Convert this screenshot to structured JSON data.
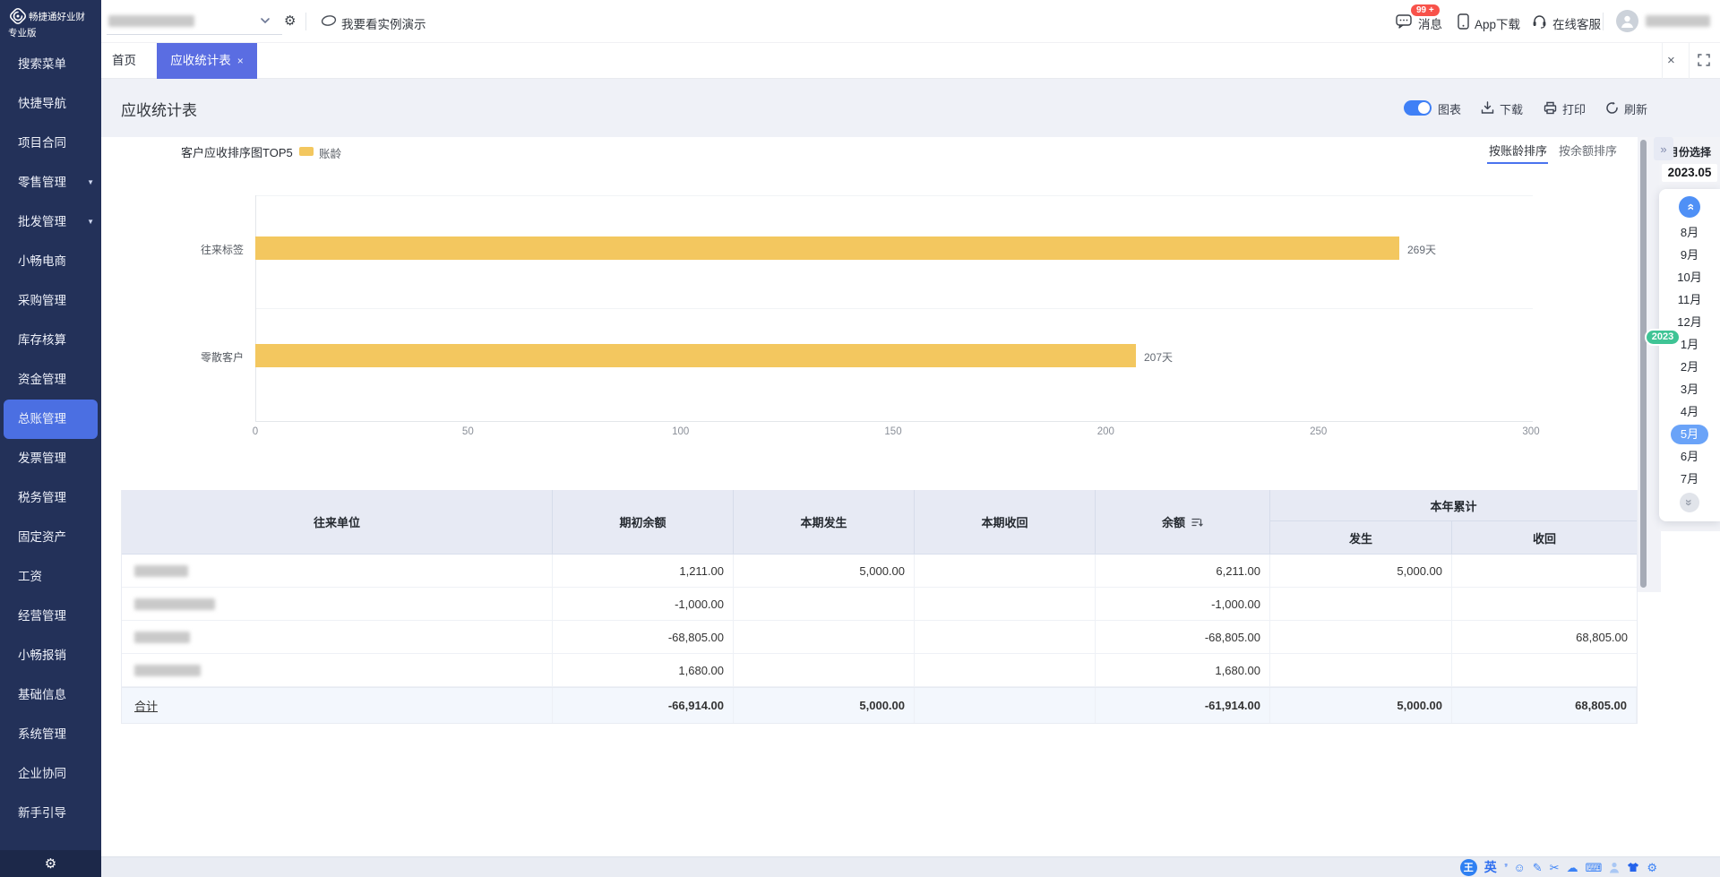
{
  "sidebar": {
    "logo_title": "畅捷通好业财",
    "logo_subtitle": "专业版",
    "items": [
      {
        "label": "搜索菜单"
      },
      {
        "label": "快捷导航"
      },
      {
        "label": "项目合同"
      },
      {
        "label": "零售管理",
        "arrow": true
      },
      {
        "label": "批发管理",
        "arrow": true
      },
      {
        "label": "小畅电商"
      },
      {
        "label": "采购管理"
      },
      {
        "label": "库存核算"
      },
      {
        "label": "资金管理"
      },
      {
        "label": "总账管理",
        "active": true
      },
      {
        "label": "发票管理"
      },
      {
        "label": "税务管理"
      },
      {
        "label": "固定资产"
      },
      {
        "label": "工资"
      },
      {
        "label": "经营管理"
      },
      {
        "label": "小畅报销"
      },
      {
        "label": "基础信息"
      },
      {
        "label": "系统管理"
      },
      {
        "label": "企业协同"
      },
      {
        "label": "新手引导"
      }
    ]
  },
  "topbar": {
    "demo_link": "我要看实例演示",
    "messages_label": "消息",
    "messages_badge": "99 +",
    "app_download_label": "App下载",
    "support_label": "在线客服"
  },
  "tabs": [
    {
      "label": "首页"
    },
    {
      "label": "应收统计表",
      "active": true,
      "closable": true
    }
  ],
  "page": {
    "title": "应收统计表",
    "toolbar": {
      "chart_toggle_label": "图表",
      "download_label": "下载",
      "print_label": "打印",
      "refresh_label": "刷新"
    }
  },
  "chart": {
    "sort_tabs": [
      {
        "label": "按账龄排序",
        "active": true
      },
      {
        "label": "按余额排序"
      }
    ]
  },
  "chart_data": {
    "type": "bar",
    "orientation": "horizontal",
    "title": "客户应收排序图TOP5",
    "legend": [
      "账龄"
    ],
    "categories": [
      "往来标签",
      "零散客户"
    ],
    "values": [
      269,
      207
    ],
    "value_labels": [
      "269天",
      "207天"
    ],
    "unit": "天",
    "xlim": [
      0,
      300
    ],
    "xticks": [
      0,
      50,
      100,
      150,
      200,
      250,
      300
    ],
    "bar_color": "#f3c75f",
    "grid": true,
    "legend_position": "top-left"
  },
  "table": {
    "columns": [
      "往来单位",
      "期初余额",
      "本期发生",
      "本期收回",
      "余额"
    ],
    "group_header": "本年累计",
    "sub_columns": [
      "发生",
      "收回"
    ],
    "rows": [
      {
        "values": [
          "1,211.00",
          "5,000.00",
          "",
          "6,211.00",
          "5,000.00",
          ""
        ]
      },
      {
        "values": [
          "-1,000.00",
          "",
          "",
          "-1,000.00",
          "",
          ""
        ]
      },
      {
        "values": [
          "-68,805.00",
          "",
          "",
          "-68,805.00",
          "",
          "68,805.00"
        ]
      },
      {
        "values": [
          "1,680.00",
          "",
          "",
          "1,680.00",
          "",
          ""
        ]
      }
    ],
    "total": {
      "label": "合计",
      "values": [
        "-66,914.00",
        "5,000.00",
        "",
        "-61,914.00",
        "5,000.00",
        "68,805.00"
      ]
    }
  },
  "month_panel": {
    "title": "月份选择",
    "current": "2023.05",
    "year_badge": "2023",
    "months": [
      {
        "label": "8月"
      },
      {
        "label": "9月"
      },
      {
        "label": "10月"
      },
      {
        "label": "11月"
      },
      {
        "label": "12月"
      },
      {
        "label": "1月"
      },
      {
        "label": "2月"
      },
      {
        "label": "3月"
      },
      {
        "label": "4月"
      },
      {
        "label": "5月",
        "selected": true
      },
      {
        "label": "6月"
      },
      {
        "label": "7月"
      }
    ]
  },
  "ime": {
    "lang_button": "王",
    "mode": "英",
    "icons": [
      "quote",
      "smiley",
      "pen",
      "scissors",
      "cloud",
      "keyboard",
      "user",
      "clothes",
      "gear"
    ]
  }
}
